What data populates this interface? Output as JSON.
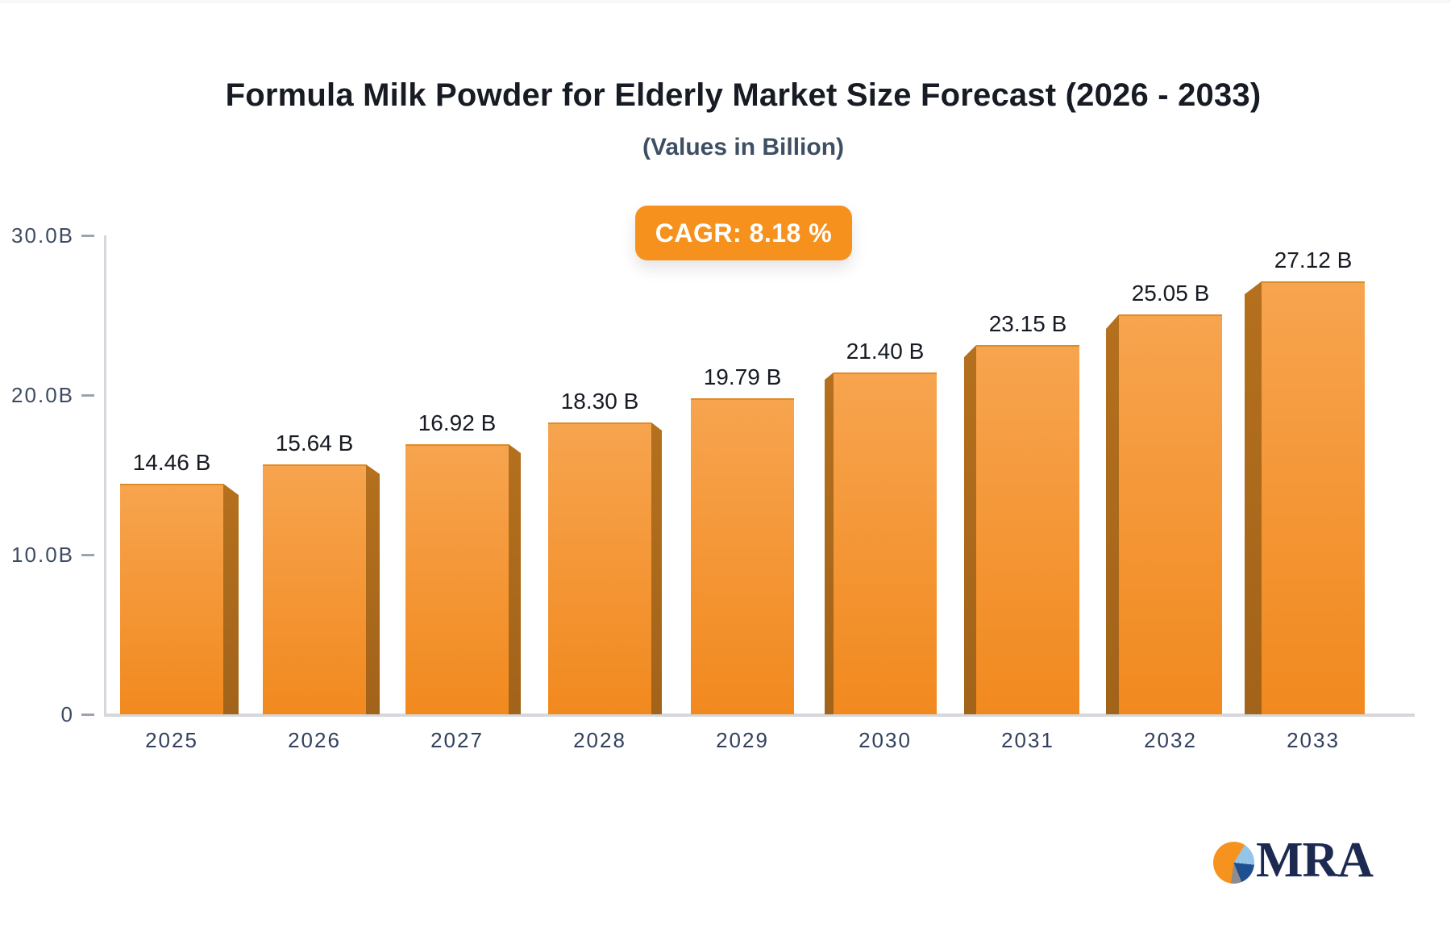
{
  "title": "Formula Milk Powder for Elderly Market Size Forecast (2026 - 2033)",
  "subtitle": "(Values in Billion)",
  "badge": {
    "label": "CAGR: 8.18 %"
  },
  "logo": {
    "text": "MRA"
  },
  "chart_data": {
    "type": "bar",
    "style": "pseudo-3d-bars",
    "title": "Formula Milk Powder for Elderly Market Size Forecast (2026 - 2033)",
    "subtitle": "(Values in Billion)",
    "cagr_label": "CAGR: 8.18 %",
    "categories": [
      "2025",
      "2026",
      "2027",
      "2028",
      "2029",
      "2030",
      "2031",
      "2032",
      "2033"
    ],
    "values": [
      14.46,
      15.64,
      16.92,
      18.3,
      19.79,
      21.4,
      23.15,
      25.05,
      27.12
    ],
    "value_labels": [
      "14.46 B",
      "15.64 B",
      "16.92 B",
      "18.30 B",
      "19.79 B",
      "21.40 B",
      "23.15 B",
      "25.05 B",
      "27.12 B"
    ],
    "unit": "Billion",
    "xlabel": "",
    "ylabel": "",
    "ylim": [
      0,
      30
    ],
    "yticks": [
      {
        "value": 30,
        "label": "30.0B"
      },
      {
        "value": 20,
        "label": "20.0B"
      },
      {
        "value": 10,
        "label": "10.0B"
      },
      {
        "value": 0,
        "label": "0"
      }
    ],
    "grid": false,
    "legend": null,
    "colors": {
      "bar_top": "#F7A44F",
      "bar_bottom": "#F1891E",
      "bar_side": "#B4701D",
      "badge_background": "#F6911E",
      "badge_text": "#FFFFFF",
      "axis_line": "#D5D7DC",
      "tick": "#9BA3AE",
      "y_label": "#3D4B62",
      "x_label": "#32415E",
      "value_label": "#171B23",
      "title": "#171B23",
      "subtitle": "#3E4E63",
      "logo_navy": "#1C2A52",
      "logo_pie": [
        "#F6921E",
        "#94C5E9",
        "#1D4F91",
        "#8D8D8D"
      ]
    }
  }
}
